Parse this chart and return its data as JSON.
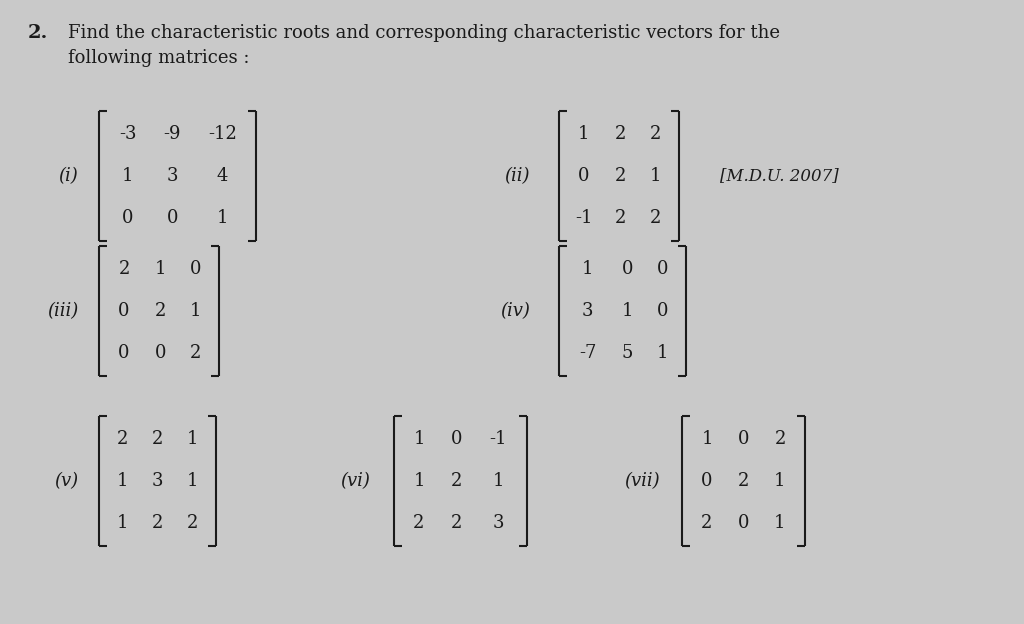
{
  "title_number": "2.",
  "title_text_line1": "Find the characteristic roots and corresponding characteristic vectors for the",
  "title_text_line2": "following matrices :",
  "background_color": "#c9c9c9",
  "text_color": "#1a1a1a",
  "font_size_title": 13.5,
  "font_size_label": 13,
  "font_size_matrix": 13,
  "matrices": {
    "i": [
      [
        "-3",
        "-9",
        "-12"
      ],
      [
        "1",
        "3",
        "4"
      ],
      [
        "0",
        "0",
        "1"
      ]
    ],
    "ii": [
      [
        "1",
        "2",
        "2"
      ],
      [
        "0",
        "2",
        "1"
      ],
      [
        "-1",
        "2",
        "2"
      ]
    ],
    "iii": [
      [
        "2",
        "1",
        "0"
      ],
      [
        "0",
        "2",
        "1"
      ],
      [
        "0",
        "0",
        "2"
      ]
    ],
    "iv": [
      [
        "1",
        "0",
        "0"
      ],
      [
        "3",
        "1",
        "0"
      ],
      [
        "-7",
        "5",
        "1"
      ]
    ],
    "v": [
      [
        "2",
        "2",
        "1"
      ],
      [
        "1",
        "3",
        "1"
      ],
      [
        "1",
        "2",
        "2"
      ]
    ],
    "vi": [
      [
        "1",
        "0",
        "-1"
      ],
      [
        "1",
        "2",
        "1"
      ],
      [
        "2",
        "2",
        "3"
      ]
    ],
    "vii": [
      [
        "1",
        "0",
        "2"
      ],
      [
        "0",
        "2",
        "1"
      ],
      [
        "2",
        "0",
        "1"
      ]
    ]
  },
  "note_ii": "[M.D.U. 2007]",
  "lw": 1.5
}
